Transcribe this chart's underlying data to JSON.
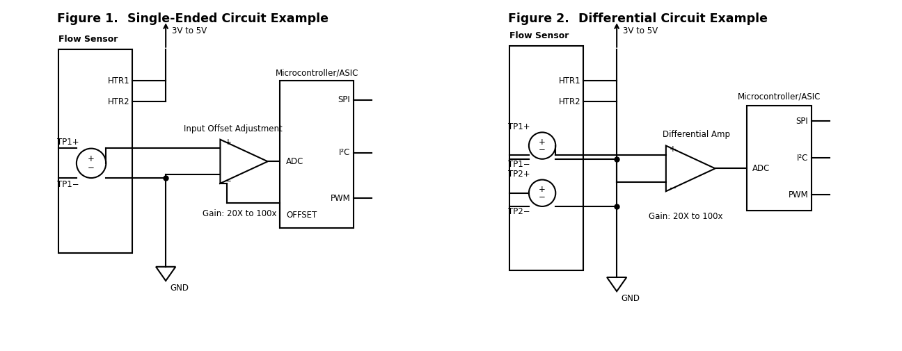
{
  "fig1_title": "Figure 1.",
  "fig1_subtitle": "Single-Ended Circuit Example",
  "fig2_title": "Figure 2.",
  "fig2_subtitle": "Differential Circuit Example",
  "bg_color": "#ffffff",
  "line_color": "#000000",
  "title_fontsize": 12.5,
  "label_fontsize": 9,
  "small_fontsize": 8.5,
  "lw": 1.5
}
